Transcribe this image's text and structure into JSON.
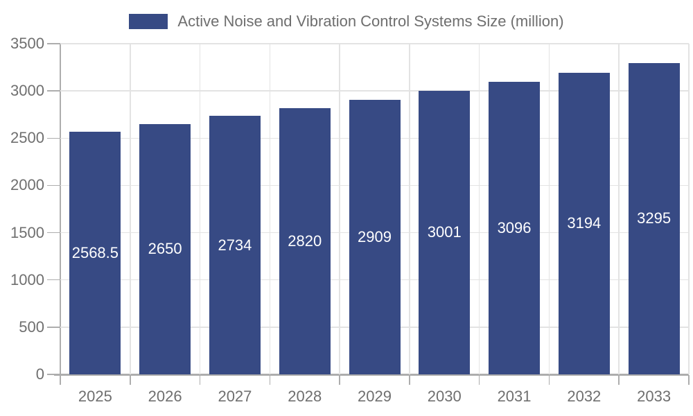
{
  "chart_data": {
    "type": "bar",
    "title": "Active Noise and Vibration Control Systems Size (million)",
    "legend": {
      "label": "Active Noise and Vibration Control Systems Size (million)",
      "position": "top-center"
    },
    "categories": [
      "2025",
      "2026",
      "2027",
      "2028",
      "2029",
      "2030",
      "2031",
      "2032",
      "2033"
    ],
    "values": [
      2568.5,
      2650,
      2734,
      2820,
      2909,
      3001,
      3096,
      3194,
      3295
    ],
    "xlabel": "",
    "ylabel": "",
    "ylim": [
      0,
      3500
    ],
    "ytick_step": 500,
    "yticks": [
      0,
      500,
      1000,
      1500,
      2000,
      2500,
      3000,
      3500
    ],
    "grid": true,
    "bar_labels_visible": true,
    "colors": {
      "bar": "#374a84",
      "bar_label": "#ffffff",
      "grid": "#e3e3e3",
      "axis": "#adadad",
      "tick_label": "#6f6f6f",
      "legend_text": "#6e6e6e"
    }
  }
}
